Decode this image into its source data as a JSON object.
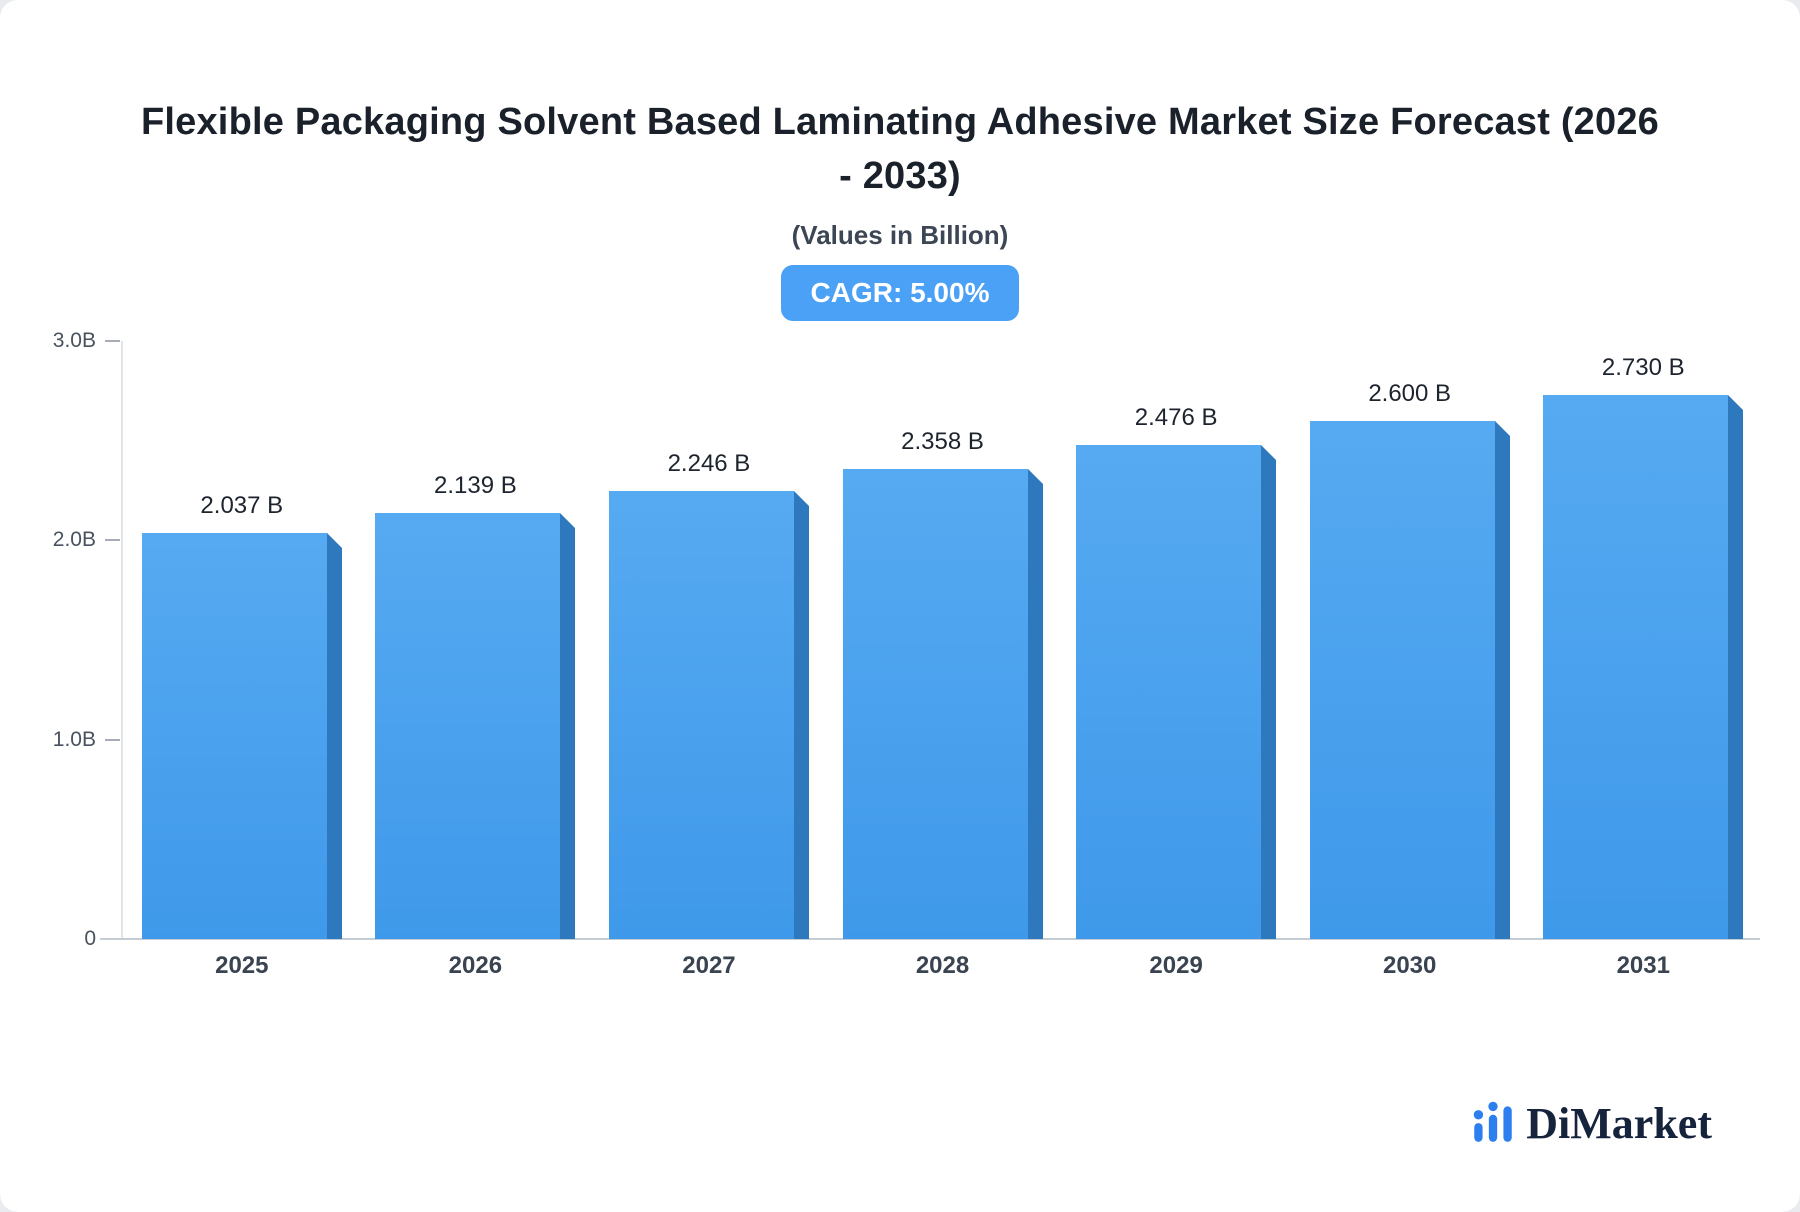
{
  "header": {
    "title": "Flexible Packaging Solvent Based Laminating Adhesive Market Size Forecast (2026 - 2033)",
    "subtitle": "(Values in Billion)",
    "cagr_label": "CAGR: 5.00%"
  },
  "brand": {
    "name": "DiMarket",
    "icon": "bar-chart-logo-icon"
  },
  "colors": {
    "title_text": "#1b212b",
    "badge_bg": "#4aa1f6",
    "bar_front_top": "#56aaf1",
    "bar_front_bottom": "#3f99ea",
    "bar_side": "#2e79bd",
    "brand_icon": "#2d7ff0",
    "brand_text": "#16233c"
  },
  "chart_data": {
    "type": "bar",
    "title": "Flexible Packaging Solvent Based Laminating Adhesive Market Size Forecast (2026 - 2033)",
    "subtitle": "(Values in Billion)",
    "cagr": "5.00%",
    "unit": "Billion",
    "categories": [
      "2025",
      "2026",
      "2027",
      "2028",
      "2029",
      "2030",
      "2031"
    ],
    "values": [
      2.037,
      2.139,
      2.246,
      2.358,
      2.476,
      2.6,
      2.73
    ],
    "value_labels": [
      "2.037 B",
      "2.139 B",
      "2.246 B",
      "2.358 B",
      "2.476 B",
      "2.600 B",
      "2.730 B"
    ],
    "ylim": [
      0,
      3
    ],
    "yticks": [
      {
        "value": 0,
        "label": "0"
      },
      {
        "value": 1,
        "label": "1.0B"
      },
      {
        "value": 2,
        "label": "2.0B"
      },
      {
        "value": 3,
        "label": "3.0B"
      }
    ],
    "grid": false,
    "legend": false,
    "bar_style": "3d"
  }
}
